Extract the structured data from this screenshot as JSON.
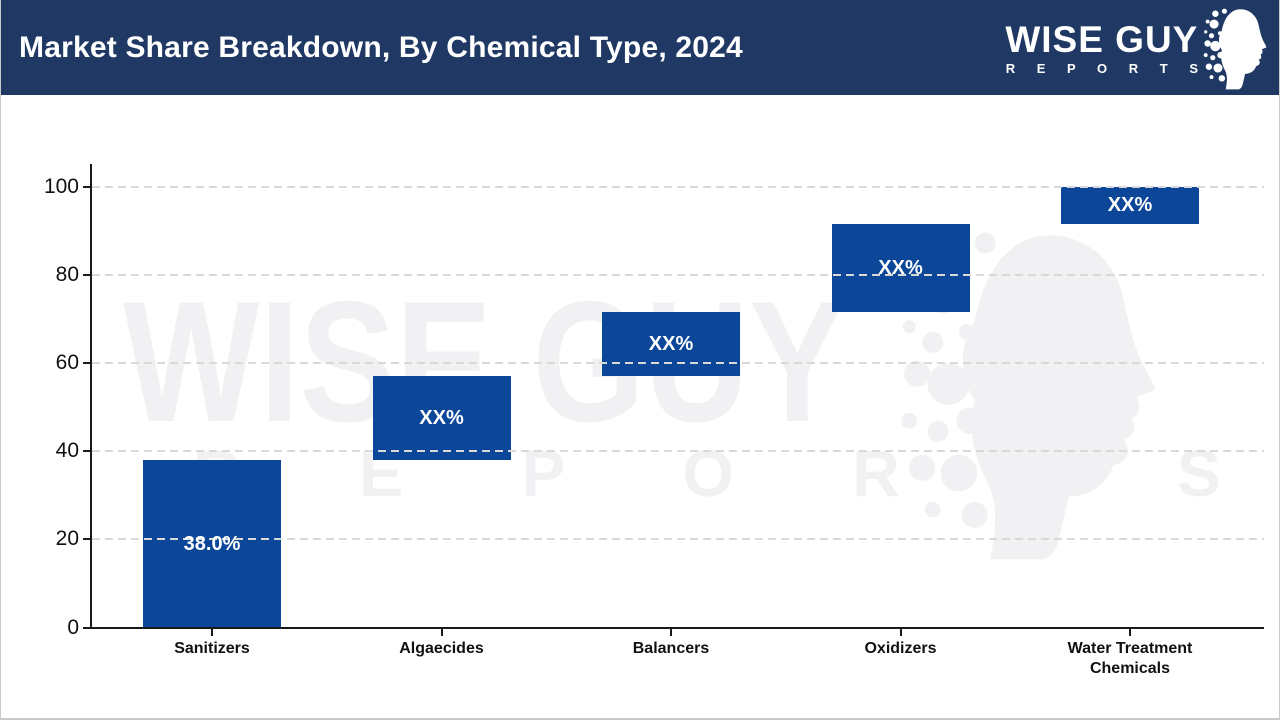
{
  "header": {
    "title": "Market Share Breakdown, By Chemical Type, 2024",
    "brand": {
      "line1": "WISE GUY",
      "line2": "R E P O R T S"
    }
  },
  "watermark": {
    "line1": "WISE GUY",
    "line2": "R E P O R T S"
  },
  "chart_data": {
    "type": "bar",
    "subtype": "waterfall",
    "title": "Market Share Breakdown, By Chemical Type, 2024",
    "categories": [
      "Sanitizers",
      "Algaecides",
      "Balancers",
      "Oxidizers",
      "Water Treatment Chemicals"
    ],
    "segments": [
      {
        "category": "Sanitizers",
        "start": 0,
        "end": 38,
        "value": 38.0,
        "label": "38.0%"
      },
      {
        "category": "Algaecides",
        "start": 38,
        "end": 57,
        "value": 19.0,
        "label": "XX%"
      },
      {
        "category": "Balancers",
        "start": 57,
        "end": 71.6,
        "value": 14.6,
        "label": "XX%"
      },
      {
        "category": "Oxidizers",
        "start": 71.6,
        "end": 91.6,
        "value": 20.0,
        "label": "XX%"
      },
      {
        "category": "Water Treatment Chemicals",
        "start": 91.6,
        "end": 100,
        "value": 8.4,
        "label": "XX%"
      }
    ],
    "y_ticks": [
      0,
      20,
      40,
      60,
      80,
      100
    ],
    "ylim": [
      0,
      105
    ],
    "grid": "dashed-horizontal",
    "legend": "none",
    "bar_color": "#0b4699",
    "bar_label_color": "#ffffff"
  },
  "colors": {
    "header_bg": "#203864",
    "bar": "#0b4699",
    "watermark": "#f1f1f4",
    "gridline": "#d9d9d9",
    "axis": "#1a1a1a"
  }
}
